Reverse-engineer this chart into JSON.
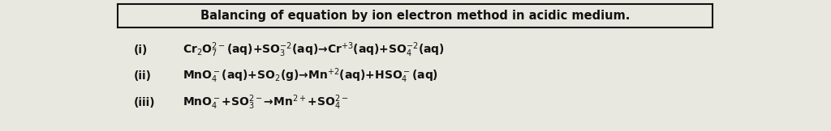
{
  "title": "Balancing of equation by ion electron method in acidic medium.",
  "bg_color": "#e8e8e0",
  "text_color": "#111111",
  "box_edge_color": "#111111",
  "title_fontsize": 10.5,
  "eq_fontsize": 10.0,
  "label_fontsize": 10.0,
  "line1_label": "(i)",
  "line1_eq": "Cr$_2$O$_7^{2-}$(aq)+SO$_3^{-2}$(aq)→Cr$^{+3}$(aq)+SO$_4^{-2}$(aq)",
  "line2_label": "(ii)",
  "line2_eq": "MnO$_4^-$(aq)+SO$_2$(g)→Mn$^{+2}$(aq)+HSO$_4^-$(aq)",
  "line3_label": "(iii)",
  "line3_eq": "MnO$_4^-$+SO$_3^{2-}$→Mn$^{2+}$+SO$_4^{2-}$"
}
